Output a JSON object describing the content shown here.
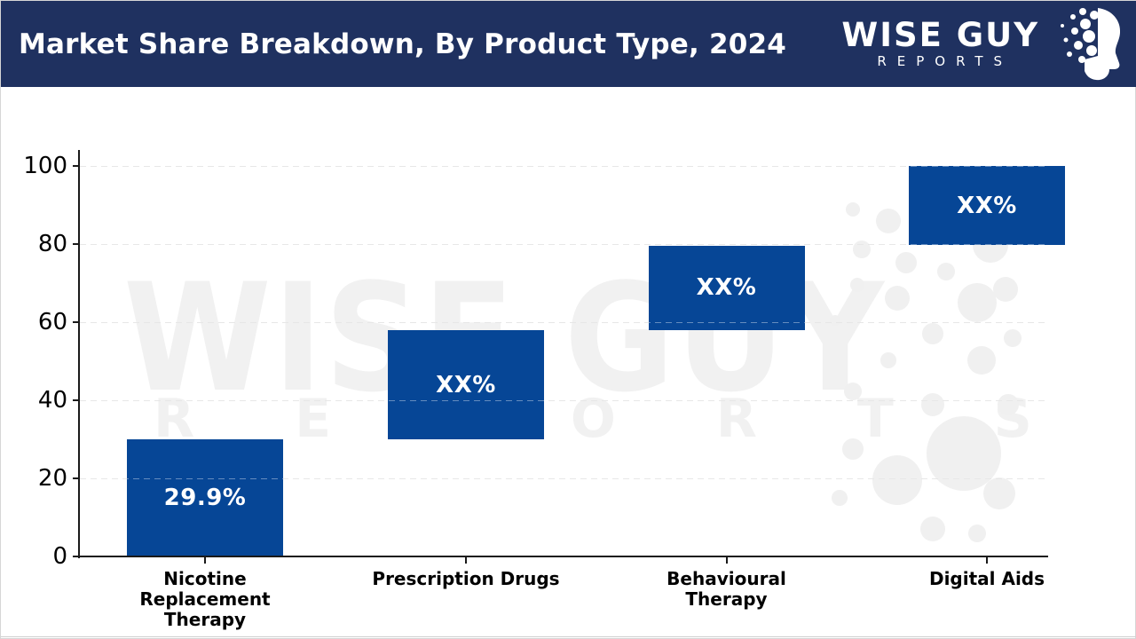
{
  "header": {
    "title": "Market Share Breakdown, By Product Type, 2024",
    "logo": {
      "line1": "WISE GUY",
      "line2": "REPORTS"
    }
  },
  "watermark": {
    "line1": "WISE GUY",
    "line2": "R E P O R T S"
  },
  "chart_data": {
    "type": "bar",
    "subtype": "waterfall",
    "title": "Market Share Breakdown, By Product Type, 2024",
    "categories": [
      "Nicotine\nReplacement\nTherapy",
      "Prescription Drugs",
      "Behavioural\nTherapy",
      "Digital Aids"
    ],
    "segments": [
      {
        "category": "Nicotine Replacement Therapy",
        "start": 0,
        "end": 29.9,
        "label": "29.9%"
      },
      {
        "category": "Prescription Drugs",
        "start": 29.9,
        "end": 58.0,
        "label": "XX%"
      },
      {
        "category": "Behavioural Therapy",
        "start": 58.0,
        "end": 79.6,
        "label": "XX%"
      },
      {
        "category": "Digital Aids",
        "start": 79.8,
        "end": 99.9,
        "label": "XX%"
      }
    ],
    "yticks": [
      0,
      20,
      40,
      60,
      80,
      100
    ],
    "ylim": [
      0,
      104
    ],
    "xlabel": "",
    "ylabel": "",
    "grid": true,
    "legend": "none",
    "bar_color": "#064696"
  },
  "colors": {
    "header_bg": "#1f3160",
    "bar": "#064696",
    "grid": "#d9d9d9",
    "axis": "#1a1a1a",
    "watermark": "#f1f1f1"
  }
}
